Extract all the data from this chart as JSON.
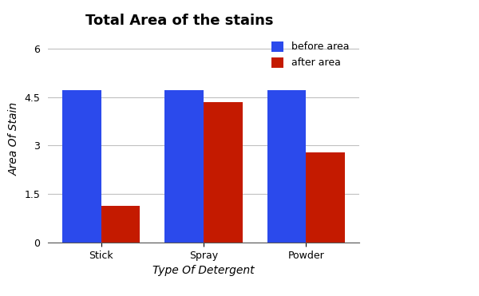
{
  "title": "Total Area of the stains",
  "categories": [
    "Stick",
    "Spray",
    "Powder"
  ],
  "before_area": [
    4.72,
    4.72,
    4.72
  ],
  "after_area": [
    1.15,
    4.35,
    2.8
  ],
  "bar_color_before": "#2b4aec",
  "bar_color_after": "#c41a00",
  "xlabel": "Type Of Detergent",
  "ylabel": "Area Of Stain",
  "ylim": [
    0,
    6.4
  ],
  "yticks": [
    0,
    1.5,
    3,
    4.5,
    6
  ],
  "legend_labels": [
    "before area",
    "after area"
  ],
  "background_color": "#ffffff",
  "grid_color": "#c0c0c0",
  "title_fontsize": 13,
  "axis_label_fontsize": 10,
  "tick_fontsize": 9,
  "legend_fontsize": 9,
  "bar_width": 0.38
}
